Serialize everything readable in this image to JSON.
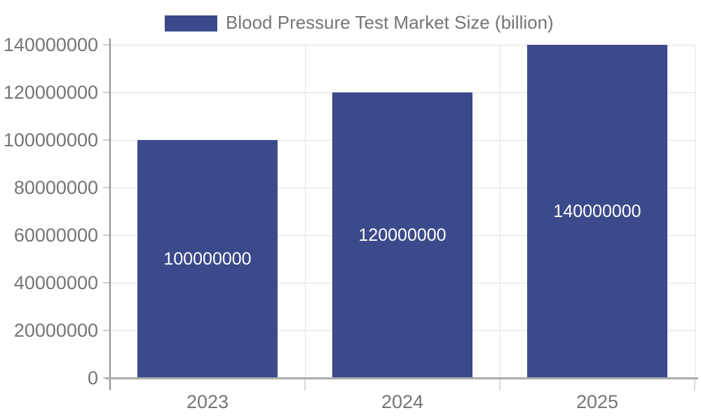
{
  "chart_data": {
    "type": "bar",
    "title": "Blood Pressure Test Market Size (billion)",
    "categories": [
      "2023",
      "2024",
      "2025"
    ],
    "series": [
      {
        "name": "Blood Pressure Test Market Size (billion)",
        "color": "#3b4a8b",
        "values": [
          100000000,
          120000000,
          140000000
        ]
      }
    ],
    "bar_value_labels": [
      "100000000",
      "120000000",
      "140000000"
    ],
    "xlabel": "",
    "ylabel": "",
    "ylim": [
      0,
      140000000
    ],
    "yticks": [
      0,
      20000000,
      40000000,
      60000000,
      80000000,
      100000000,
      120000000,
      140000000
    ],
    "grid": true,
    "legend_position": "top",
    "colors": {
      "bar": "#3b4a8b",
      "grid_line": "#e2e2e2",
      "axis_spine": "#8c8c8c",
      "baseline": "#ababab",
      "tick_mark": "#cccccc",
      "tick_label": "#757575",
      "value_label": "#ffffff",
      "background": "#ffffff"
    }
  }
}
